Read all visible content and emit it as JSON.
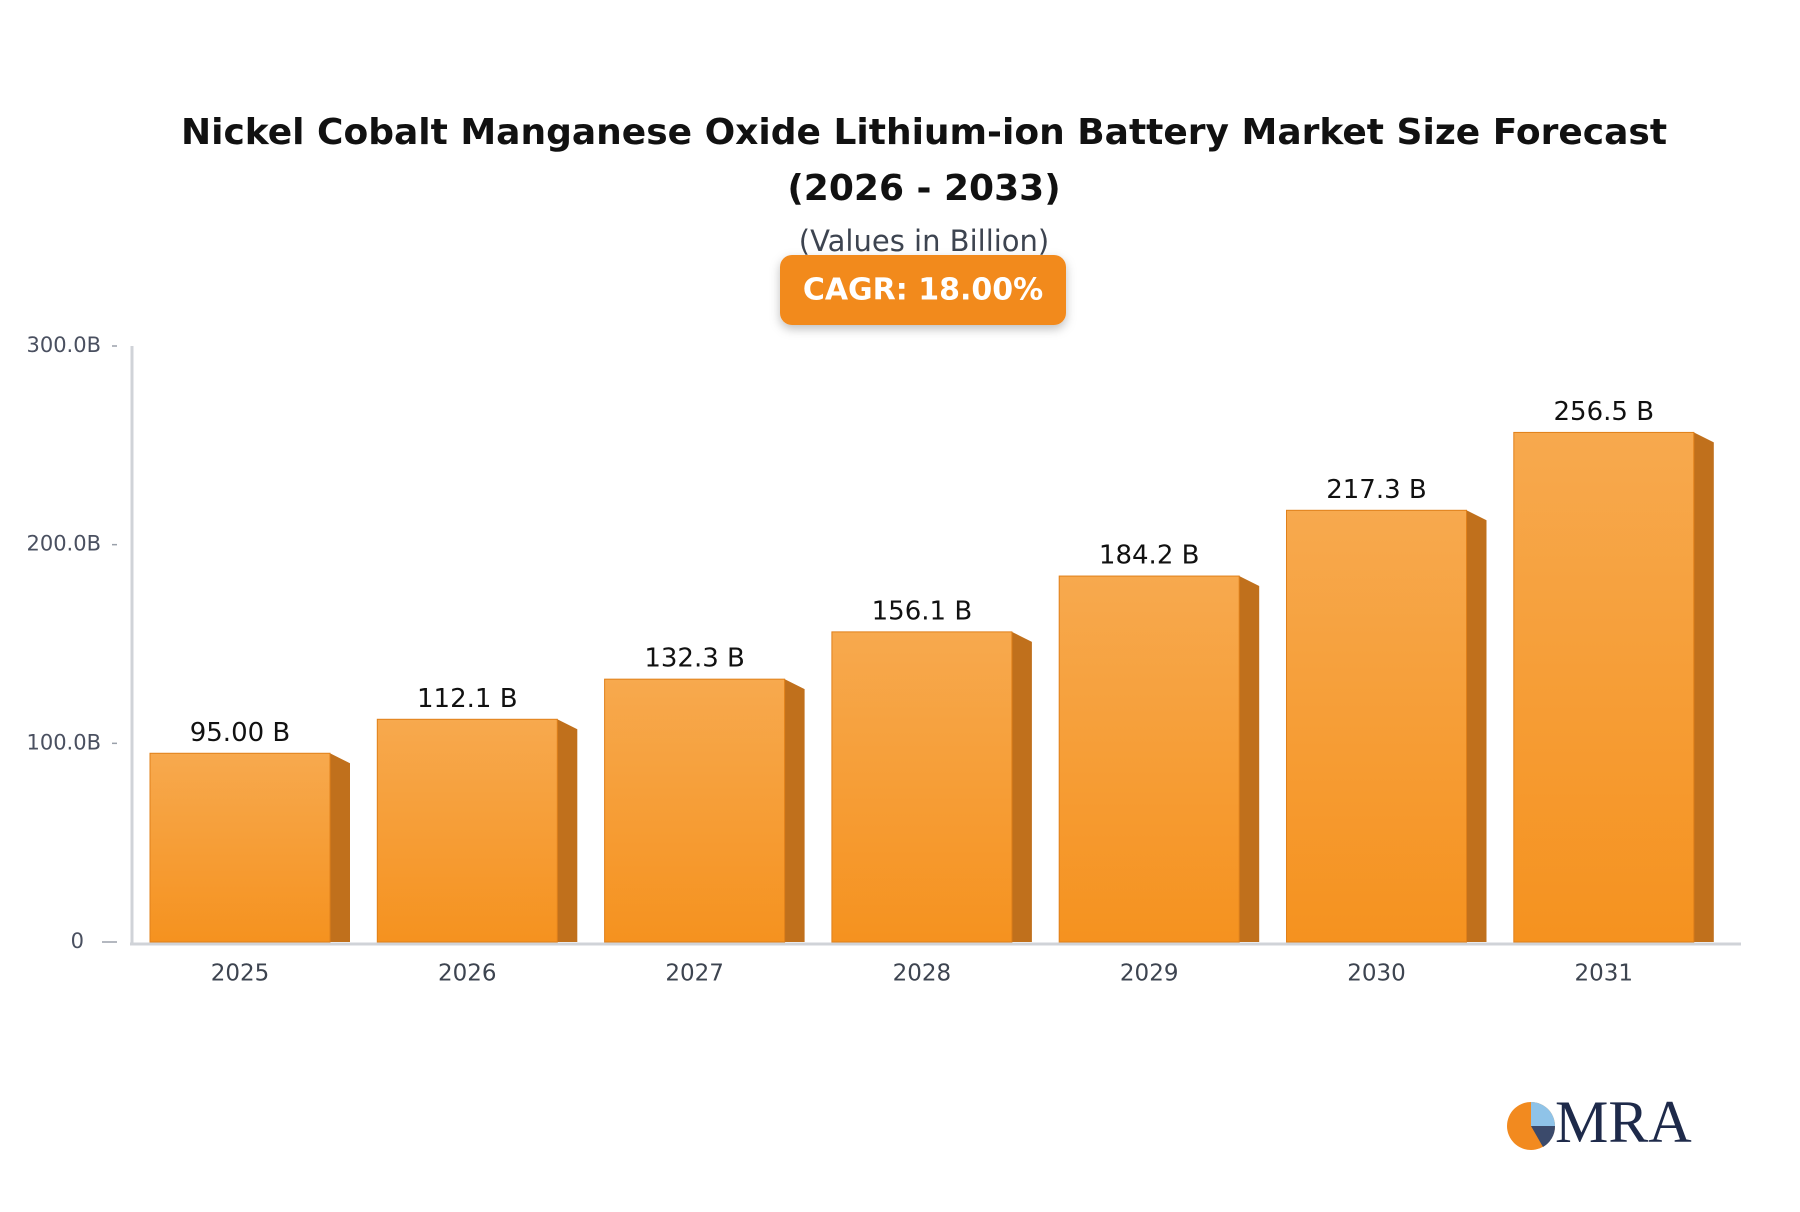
{
  "chart_data": {
    "type": "bar",
    "title": "Nickel Cobalt Manganese Oxide Lithium-ion Battery Market Size Forecast (2026 - 2033)",
    "subtitle": "(Values in Billion)",
    "annotation": "CAGR: 18.00%",
    "logo": "MRA",
    "categories": [
      "2025",
      "2026",
      "2027",
      "2028",
      "2029",
      "2030",
      "2031"
    ],
    "values": [
      95.0,
      112.1,
      132.3,
      156.1,
      184.2,
      217.3,
      256.5
    ],
    "value_labels": [
      "95.00 B",
      "112.1 B",
      "132.3 B",
      "156.1 B",
      "184.2 B",
      "217.3 B",
      "256.5 B"
    ],
    "color": "#f5921f",
    "ylim": [
      0,
      300
    ],
    "yticks": [
      0,
      {
        "value": 100,
        "label": "100.0B"
      },
      {
        "value": 200,
        "label": "200.0B"
      },
      {
        "value": 300,
        "label": "300.0B"
      }
    ],
    "grid": false
  }
}
